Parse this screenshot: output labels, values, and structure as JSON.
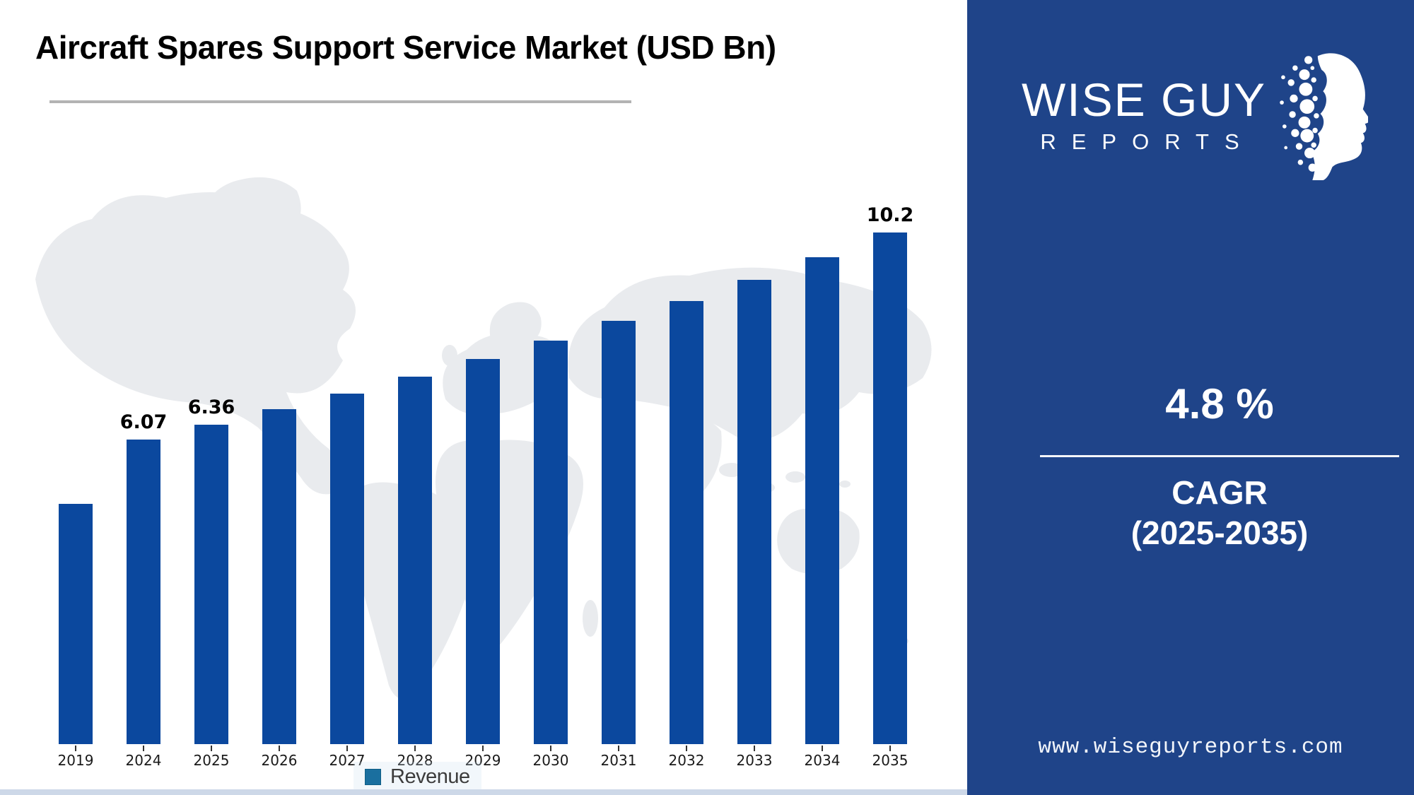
{
  "title": "Aircraft Spares Support Service Market (USD Bn)",
  "chart_data": {
    "type": "bar",
    "title": "Aircraft Spares Support Service Market (USD Bn)",
    "categories": [
      "2019",
      "2024",
      "2025",
      "2026",
      "2027",
      "2028",
      "2029",
      "2030",
      "2031",
      "2032",
      "2033",
      "2034",
      "2035"
    ],
    "values": [
      4.79,
      6.07,
      6.36,
      6.67,
      6.99,
      7.32,
      7.67,
      8.04,
      8.43,
      8.83,
      9.25,
      9.7,
      10.2
    ],
    "point_labels": {
      "2024": "6.07",
      "2025": "6.36",
      "2035": "10.2"
    },
    "series_name": "Revenue",
    "xlabel": "",
    "ylabel": "",
    "ylim": [
      0,
      11.6
    ],
    "grid": false,
    "legend_position": "bottom-left",
    "bar_color": "#0b489e"
  },
  "legend": {
    "label": "Revenue"
  },
  "sidebar": {
    "logo_line1": "WISE GUY",
    "logo_line2": "REPORTS",
    "cagr_value": "4.8 %",
    "cagr_line1": "CAGR",
    "cagr_line2": "(2025-2035)",
    "website": "www.wiseguyreports.com"
  },
  "colors": {
    "bar": "#0b489e",
    "sidebar_background": "#1f4489",
    "legend_swatch": "#1a6f9f",
    "map_land": "#e9ebee",
    "title_underline": "#b3b3b3",
    "bottom_strip": "#cdd8e8"
  }
}
